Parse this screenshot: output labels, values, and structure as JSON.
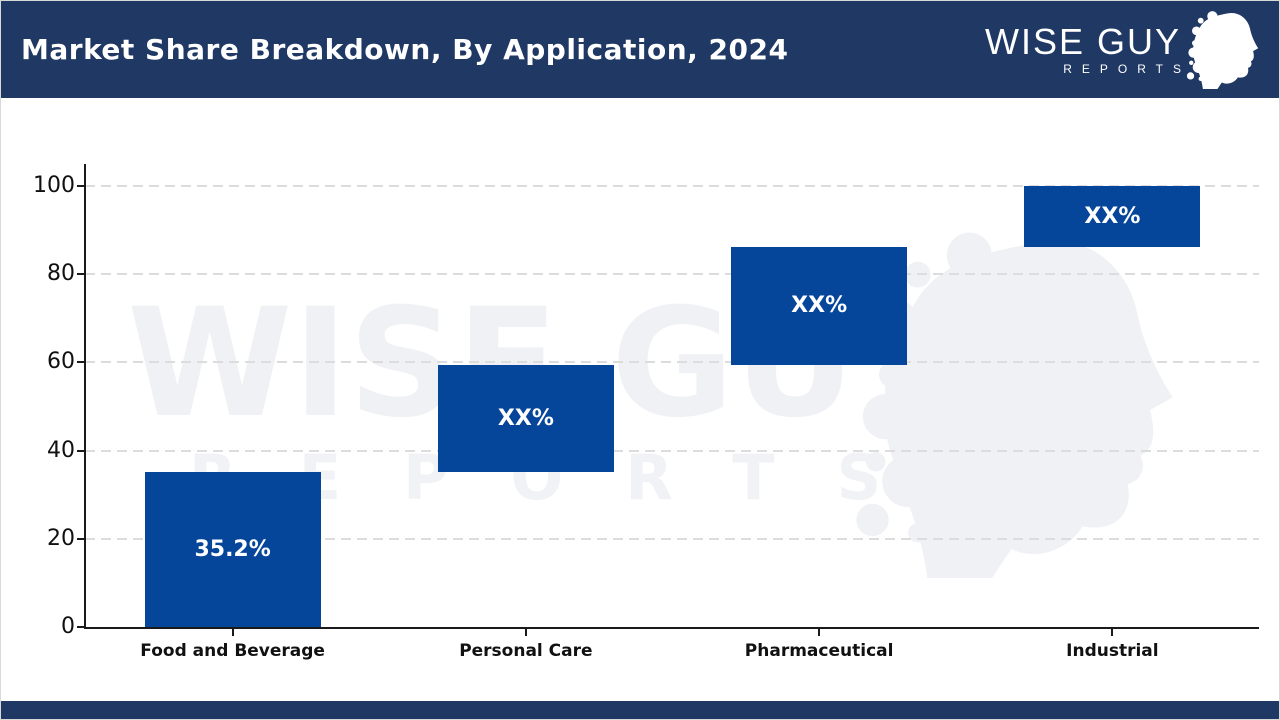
{
  "header": {
    "title": "Market Share Breakdown, By Application, 2024",
    "bg_color": "#1f3864",
    "logo": {
      "line1": "WISE GUY",
      "line2": "REPORTS"
    }
  },
  "watermark": {
    "line1": "WISE GUY",
    "line2": "REPORTS"
  },
  "chart_data": {
    "type": "bar",
    "subtype": "waterfall-floating-segments",
    "title": "Market Share Breakdown, By Application, 2024",
    "categories": [
      "Food and Beverage",
      "Personal Care",
      "Pharmaceutical",
      "Industrial"
    ],
    "segments": [
      {
        "category": "Food and Beverage",
        "start": 0,
        "end": 35.2,
        "label": "35.2%"
      },
      {
        "category": "Personal Care",
        "start": 35.2,
        "end": 59.4,
        "label": "XX%"
      },
      {
        "category": "Pharmaceutical",
        "start": 59.4,
        "end": 86.2,
        "label": "XX%"
      },
      {
        "category": "Industrial",
        "start": 86.2,
        "end": 100,
        "label": "XX%"
      }
    ],
    "xlabel": "",
    "ylabel": "",
    "ylim": [
      0,
      100
    ],
    "yticks": [
      0,
      20,
      40,
      60,
      80,
      100
    ],
    "grid": "horizontal dashed",
    "legend": "none",
    "bar_color": "#05459a",
    "bar_label_color": "#ffffff",
    "axis_color": "#1a1a1a",
    "grid_color": "#dcdcdc"
  },
  "footer": {
    "bg_color": "#1f3864"
  }
}
